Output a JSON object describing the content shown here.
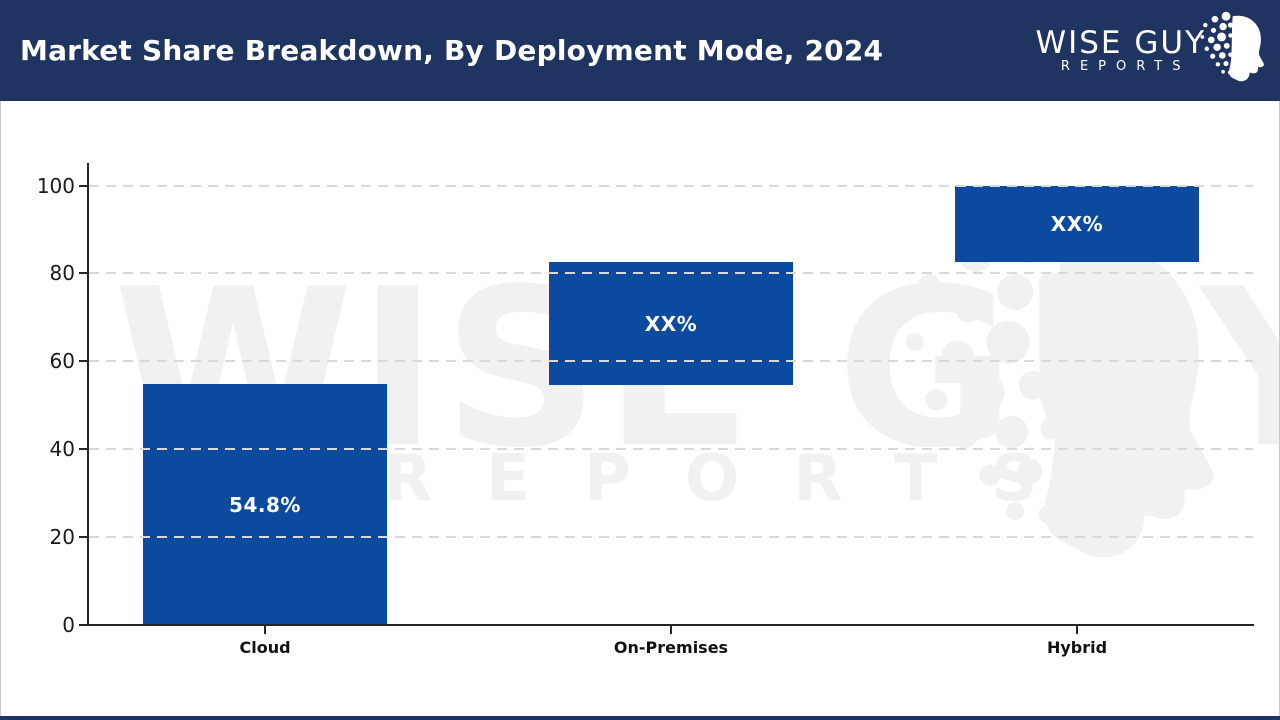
{
  "header": {
    "title": "Market Share Breakdown, By Deployment Mode, 2024"
  },
  "logo": {
    "line1": "WISE GUY",
    "line2": "REPORTS"
  },
  "watermark": {
    "line1": "WISE GUY",
    "line2": "REPORTS"
  },
  "chart_data": {
    "type": "bar",
    "subtype": "floating-waterfall",
    "title": "Market Share Breakdown, By Deployment Mode, 2024",
    "categories": [
      "Cloud",
      "On-Premises",
      "Hybrid"
    ],
    "segments": [
      {
        "category": "Cloud",
        "start": 0,
        "end": 54.8,
        "label": "54.8%"
      },
      {
        "category": "On-Premises",
        "start": 54.8,
        "end": 82.7,
        "label": "XX%"
      },
      {
        "category": "Hybrid",
        "start": 82.7,
        "end": 100,
        "label": "XX%"
      }
    ],
    "xlabel": "",
    "ylabel": "",
    "ylim": [
      0,
      100
    ],
    "yticks": [
      0,
      20,
      40,
      60,
      80,
      100
    ],
    "grid": "horizontal-dashed-over-bars",
    "bar_color": "#0b4a9e",
    "value_label_color": "#ffffff"
  },
  "colors": {
    "header_bg": "#1f3461",
    "footer_bg": "#1f3461",
    "bar": "#0b4a9e",
    "axis": "#262626",
    "gridline": "#d9d9d9",
    "watermark": "#f1f1f1"
  }
}
